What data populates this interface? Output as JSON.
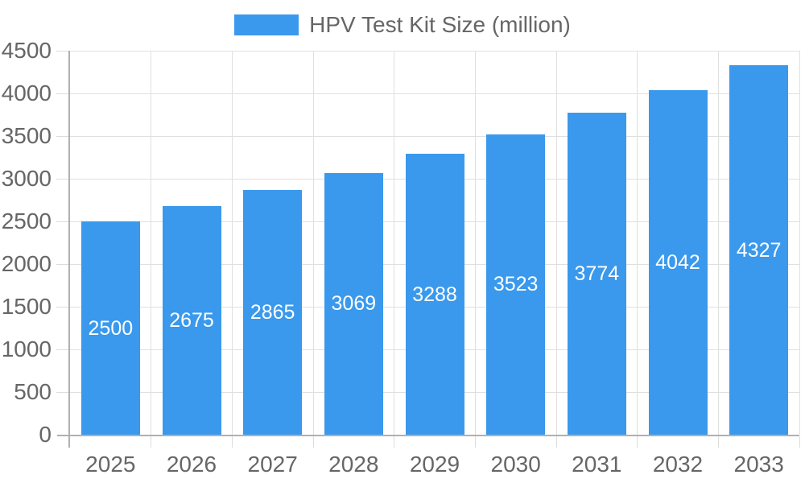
{
  "legend": {
    "label": "HPV Test Kit Size (million)"
  },
  "chart_data": {
    "type": "bar",
    "categories": [
      "2025",
      "2026",
      "2027",
      "2028",
      "2029",
      "2030",
      "2031",
      "2032",
      "2033"
    ],
    "series": [
      {
        "name": "HPV Test Kit Size (million)",
        "values": [
          2500,
          2675,
          2865,
          3069,
          3288,
          3523,
          3774,
          4042,
          4327
        ]
      }
    ],
    "value_labels_position": "inside-center",
    "yticks": [
      0,
      500,
      1000,
      1500,
      2000,
      2500,
      3000,
      3500,
      4000,
      4500
    ],
    "ylim": [
      0,
      4500
    ],
    "grid": true,
    "legend_position": "top",
    "colors": {
      "bar": "#3A99EC",
      "value_label": "#FFFFFF",
      "axis_text": "#666666",
      "grid": "#E0E0E0",
      "axis_line": "#B0B0B0",
      "tick": "#DCDCDC"
    }
  }
}
